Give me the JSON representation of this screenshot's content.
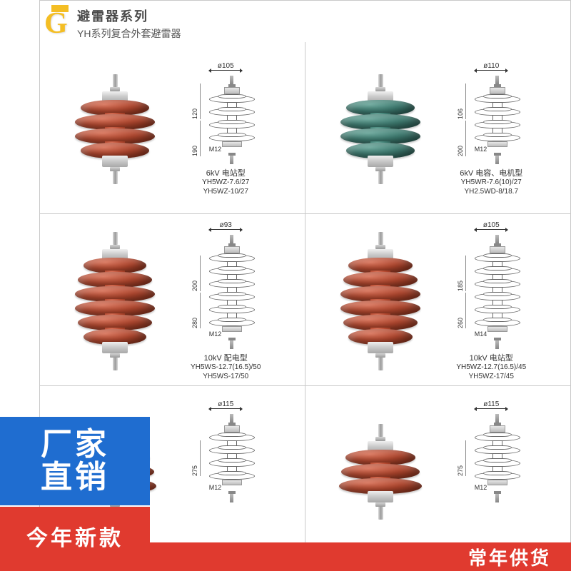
{
  "header": {
    "glyph": "G",
    "title_cn": "避雷器系列",
    "subtitle": "YH系列复合外套避雷器"
  },
  "colors": {
    "arrester_red": "#b3482f",
    "arrester_teal": "#3f7d72",
    "metal": "#bdbdbd",
    "badge_blue": "#1f6dd0",
    "badge_red": "#e03a2f",
    "border": "#c9c9c9",
    "glyph": "#f4be24"
  },
  "rows": [
    {
      "short": false,
      "cells": [
        {
          "photo": {
            "color": "red",
            "disk_widths": [
              96,
              112,
              112,
              96
            ]
          },
          "schematic": {
            "top_dim": "ø105",
            "side_dims": [
              "120",
              "190"
            ],
            "bolt": "M12",
            "disks": 4,
            "caption_main": "6kV 电站型",
            "model_lines": [
              "YH5WZ-7.6/27",
              "YH5WZ-10/27"
            ]
          }
        },
        {
          "photo": {
            "color": "teal",
            "disk_widths": [
              96,
              112,
              112,
              96
            ]
          },
          "schematic": {
            "top_dim": "ø110",
            "side_dims": [
              "106",
              "200"
            ],
            "bolt": "M12",
            "disks": 4,
            "caption_main": "6kV 电容、电机型",
            "model_lines": [
              "YH5WR-7.6(10)/27",
              "YH2.5WD-8/18.7"
            ]
          }
        }
      ]
    },
    {
      "short": false,
      "cells": [
        {
          "photo": {
            "color": "red",
            "disk_widths": [
              88,
              104,
              112,
              112,
              104,
              88
            ]
          },
          "schematic": {
            "top_dim": "ø93",
            "side_dims": [
              "200",
              "280"
            ],
            "bolt": "M12",
            "disks": 6,
            "caption_main": "10kV 配电型",
            "model_lines": [
              "YH5WS-12.7(16.5)/50",
              "YH5WS-17/50"
            ]
          }
        },
        {
          "photo": {
            "color": "red",
            "disk_widths": [
              90,
              104,
              112,
              112,
              104,
              90
            ]
          },
          "schematic": {
            "top_dim": "ø105",
            "side_dims": [
              "185",
              "260"
            ],
            "bolt": "M14",
            "disks": 6,
            "caption_main": "10kV 电站型",
            "model_lines": [
              "YH5WZ-12.7(16.5)/45",
              "YH5WZ-17/45"
            ]
          }
        }
      ]
    },
    {
      "short": true,
      "cells": [
        {
          "photo": {
            "color": "red",
            "disk_widths": [
              98,
              110,
              116
            ]
          },
          "schematic": {
            "top_dim": "ø115",
            "side_dims": [
              "275"
            ],
            "bolt": "M12",
            "disks": 4,
            "caption_main": "",
            "model_lines": []
          }
        },
        {
          "photo": {
            "color": "red",
            "disk_widths": [
              98,
              110,
              116
            ]
          },
          "schematic": {
            "top_dim": "ø115",
            "side_dims": [
              "275"
            ],
            "bolt": "M12",
            "disks": 4,
            "caption_main": "",
            "model_lines": []
          }
        }
      ]
    }
  ],
  "footer": {
    "blue_line1": "厂家",
    "blue_line2": "直销",
    "red_line1": "今年新款",
    "stripe": "常年供货"
  }
}
